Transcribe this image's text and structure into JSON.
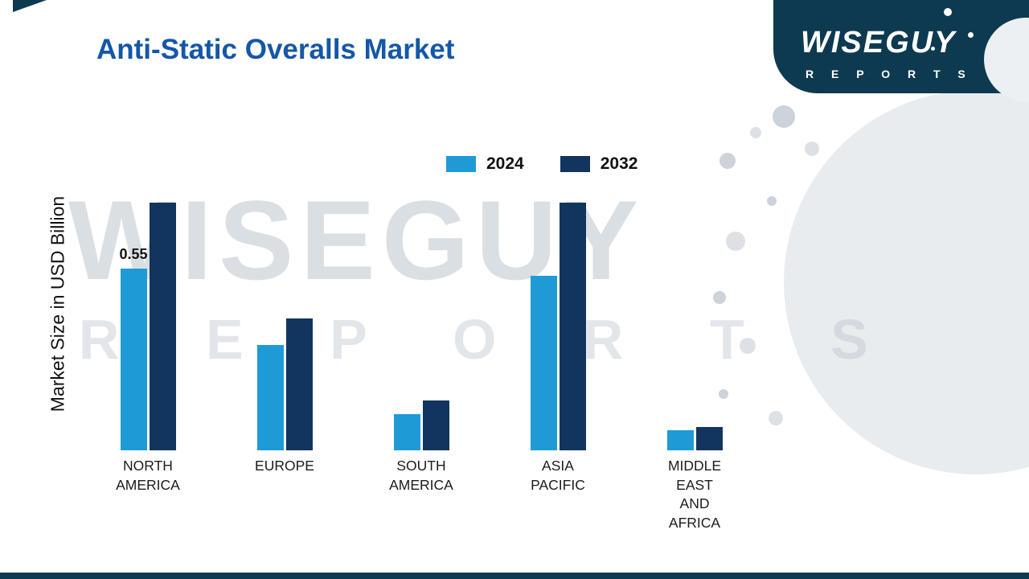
{
  "page": {
    "title": "Anti-Static Overalls Market",
    "title_color": "#1457a8",
    "accent_dark_teal": "#0d3a50"
  },
  "logo": {
    "name": "WISEGUY",
    "sub": "R E P O R T S",
    "bg_color": "#0d3a50"
  },
  "watermark": {
    "line1": "WISEGUY",
    "line2": "R E P O R T S"
  },
  "chart_data": {
    "type": "bar",
    "title": "Anti-Static Overalls Market",
    "xlabel": "",
    "ylabel": "Market Size in USD Billion",
    "categories": [
      "NORTH AMERICA",
      "EUROPE",
      "SOUTH AMERICA",
      "ASIA PACIFIC",
      "MIDDLE EAST AND AFRICA"
    ],
    "category_lines": [
      [
        "NORTH",
        "AMERICA"
      ],
      [
        "EUROPE"
      ],
      [
        "SOUTH",
        "AMERICA"
      ],
      [
        "ASIA",
        "PACIFIC"
      ],
      [
        "MIDDLE",
        "EAST",
        "AND",
        "AFRICA"
      ]
    ],
    "series": [
      {
        "name": "2024",
        "color": "#1e9bd7",
        "values": [
          0.55,
          0.32,
          0.11,
          0.53,
          0.06
        ]
      },
      {
        "name": "2032",
        "color": "#12355f",
        "values": [
          0.75,
          0.4,
          0.15,
          0.75,
          0.07
        ]
      }
    ],
    "data_labels": [
      {
        "series": "2024",
        "category": "NORTH AMERICA",
        "value": "0.55"
      }
    ],
    "ylim": [
      0,
      0.8
    ],
    "grid": false,
    "legend_position": "top-center",
    "axis_lines": "none"
  }
}
